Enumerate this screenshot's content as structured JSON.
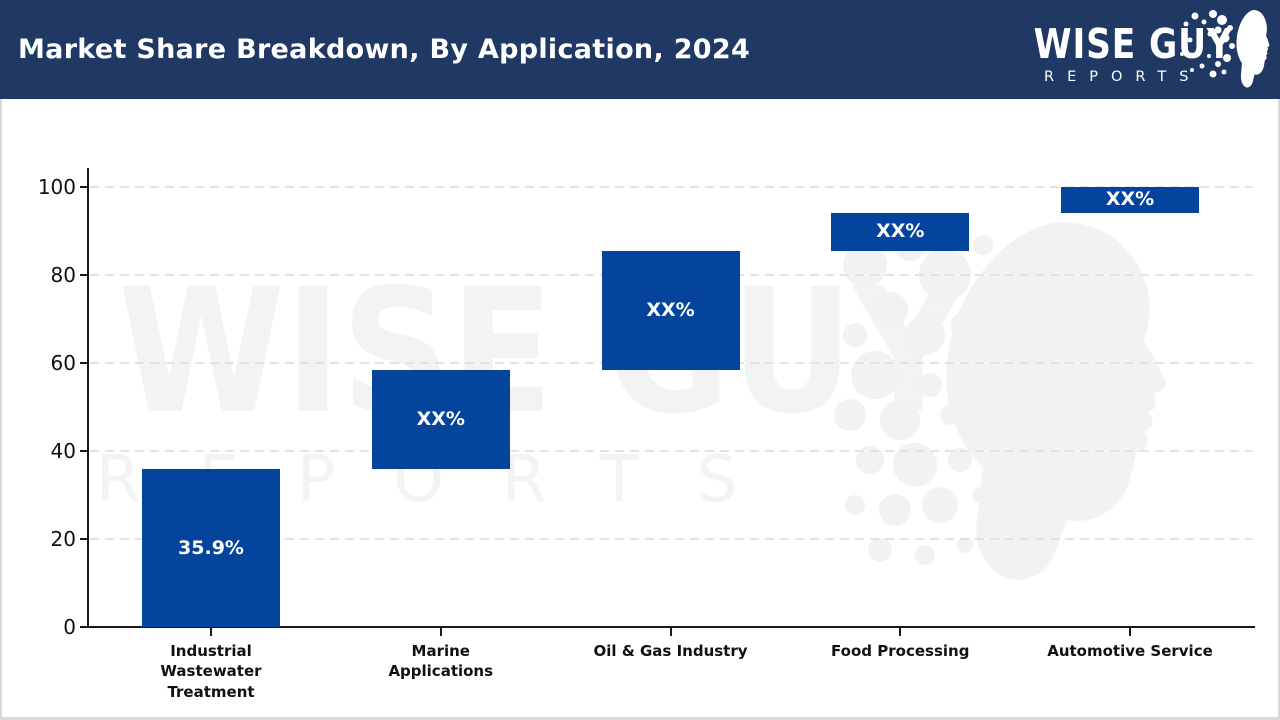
{
  "header": {
    "title": "Market Share Breakdown, By Application, 2024",
    "brand": {
      "name": "WISE GUY",
      "tagline": "REPORTS"
    }
  },
  "watermark": {
    "line1": "WISE GUY",
    "line2": "REPORTS"
  },
  "chart_data": {
    "type": "bar",
    "variant": "waterfall",
    "title": "Market Share Breakdown, By Application, 2024",
    "categories": [
      "Industrial Wastewater Treatment",
      "Marine Applications",
      "Oil & Gas Industry",
      "Food Processing",
      "Automotive Service"
    ],
    "category_lines": [
      [
        "Industrial",
        "Wastewater",
        "Treatment"
      ],
      [
        "Marine",
        "Applications"
      ],
      [
        "Oil & Gas Industry"
      ],
      [
        "Food Processing"
      ],
      [
        "Automotive Service"
      ]
    ],
    "series": [
      {
        "name": "Market share (%)",
        "segments": [
          {
            "start": 0,
            "end": 35.9,
            "label": "35.9%"
          },
          {
            "start": 35.9,
            "end": 58.5,
            "label": "XX%"
          },
          {
            "start": 58.5,
            "end": 85.4,
            "label": "XX%"
          },
          {
            "start": 85.4,
            "end": 94.2,
            "label": "XX%"
          },
          {
            "start": 94.2,
            "end": 100,
            "label": "XX%"
          }
        ]
      }
    ],
    "yticks": [
      0,
      20,
      40,
      60,
      80,
      100
    ],
    "ylim": [
      0,
      104
    ],
    "xlabel": "",
    "ylabel": "",
    "grid": "horizontal-dashed",
    "legend": "none",
    "colors": {
      "bar": "#04449c",
      "bar_label": "#ffffff",
      "axis": "#1a1a1a",
      "grid": "#e3e3e3",
      "header_bg": "#1f3864",
      "header_text": "#ffffff",
      "watermark": "#f2f3f5"
    }
  }
}
